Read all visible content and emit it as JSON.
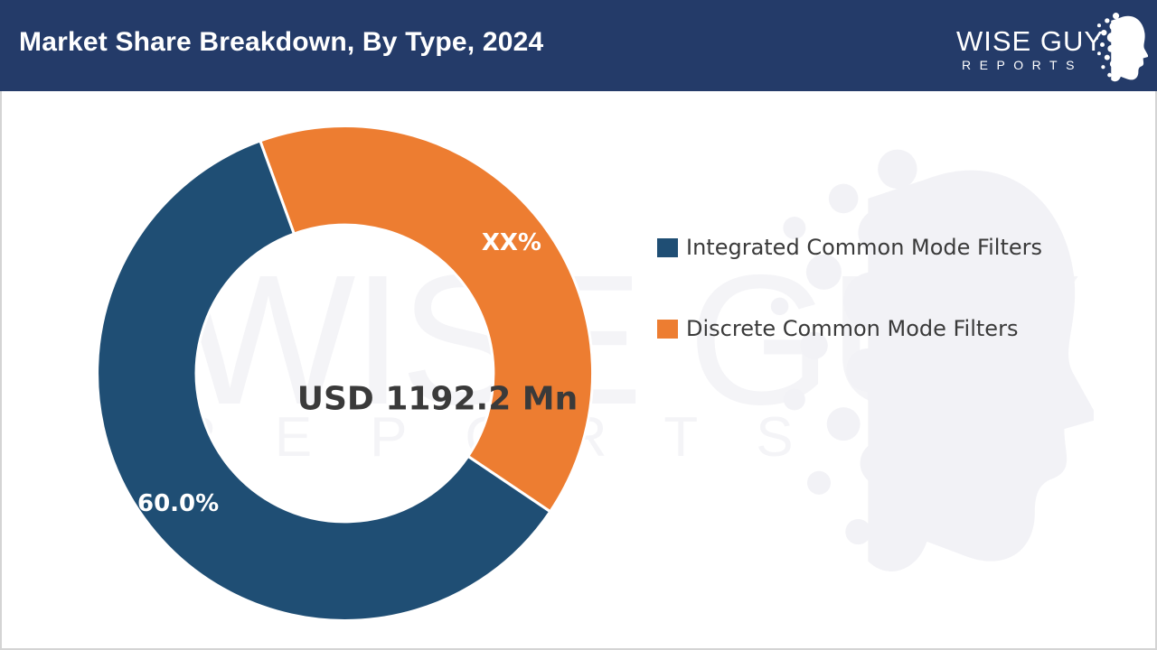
{
  "header": {
    "title": "Market Share Breakdown, By Type, 2024",
    "logo": {
      "line1": "WISE GUY",
      "line2": "REPORTS"
    }
  },
  "watermark": {
    "line1": "WISE GUY",
    "line2": "REPORTS"
  },
  "chart_data": {
    "type": "pie",
    "subtype": "donut",
    "title": "Market Share Breakdown, By Type, 2024",
    "center_label": "USD 1192.2 Mn",
    "start_angle_deg": 110,
    "direction": "clockwise",
    "donut_hole_ratio": 0.6,
    "label_radius": 234,
    "slices": [
      {
        "name": "Discrete Common Mode Filters",
        "value": 40,
        "label": "XX%",
        "color": "#ED7D31"
      },
      {
        "name": "Integrated Common Mode Filters",
        "value": 60,
        "label": "60.0%",
        "color": "#1F4E74"
      }
    ],
    "legend_position": "right"
  },
  "legend": {
    "items": [
      {
        "label": "Integrated Common Mode Filters",
        "color": "#1F4E74"
      },
      {
        "label": "Discrete Common Mode Filters",
        "color": "#ED7D31"
      }
    ]
  },
  "colors": {
    "header_background": "#243B69",
    "border": "#D4D4D4",
    "text_dark": "#3A3A3A",
    "watermark": "#F4F4F7"
  }
}
